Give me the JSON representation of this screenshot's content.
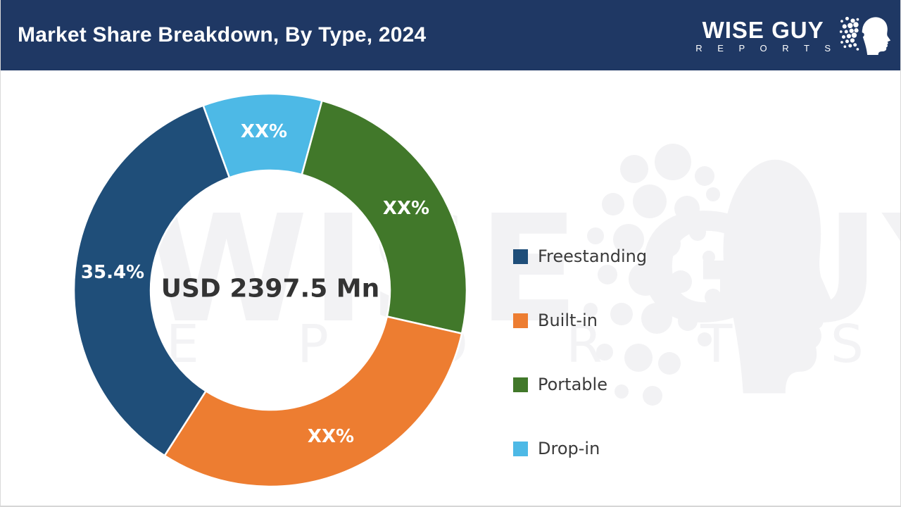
{
  "header": {
    "title": "Market Share Breakdown, By Type, 2024",
    "background_color": "#1F3864",
    "logo": {
      "line1": "WISE GUY",
      "line2": "R E P O R T S",
      "icon": "head-profile-dots-icon"
    }
  },
  "watermark": {
    "line1": "WISE GUY",
    "line2": "E P O R T S",
    "icon": "head-profile-dots-watermark",
    "color": "#F2F2F4"
  },
  "chart_data": {
    "type": "pie",
    "subtype": "donut",
    "title": "Market Share Breakdown, By Type, 2024",
    "center_label": "USD 2397.5 Mn",
    "legend_position": "right",
    "start_angle_deg": -20,
    "segments": [
      {
        "label": "Freestanding",
        "display_value": "35.4%",
        "value": 35.4,
        "color": "#1F4E79"
      },
      {
        "label": "Built-in",
        "display_value": "XX%",
        "value": 30.5,
        "color": "#ED7D31"
      },
      {
        "label": "Portable",
        "display_value": "XX%",
        "value": 24.3,
        "color": "#41782A"
      },
      {
        "label": "Drop-in",
        "display_value": "XX%",
        "value": 9.8,
        "color": "#4DB9E6"
      }
    ]
  }
}
